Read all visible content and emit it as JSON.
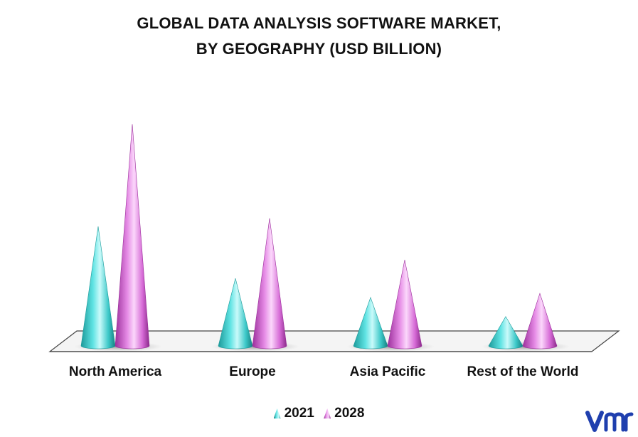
{
  "title_line1": "GLOBAL DATA ANALYSIS SOFTWARE MARKET,",
  "title_line2": "BY GEOGRAPHY (USD BILLION)",
  "chart_data": {
    "type": "bar",
    "style": "3d-cone",
    "title": "GLOBAL DATA ANALYSIS SOFTWARE MARKET, BY GEOGRAPHY (USD BILLION)",
    "categories": [
      "North America",
      "Europe",
      "Asia Pacific",
      "Rest of the World"
    ],
    "series": [
      {
        "name": "2021",
        "color": "#3cc8c8",
        "values": [
          175,
          99,
          71,
          43
        ]
      },
      {
        "name": "2028",
        "color": "#d66ad6",
        "values": [
          325,
          187,
          126,
          77
        ]
      }
    ],
    "ylim": [
      0,
      340
    ],
    "grid": false,
    "legend": "bottom-center"
  },
  "legend": {
    "items": [
      "2021",
      "2028"
    ]
  },
  "logo": {
    "text": "vmr",
    "color": "#1f3fae"
  }
}
